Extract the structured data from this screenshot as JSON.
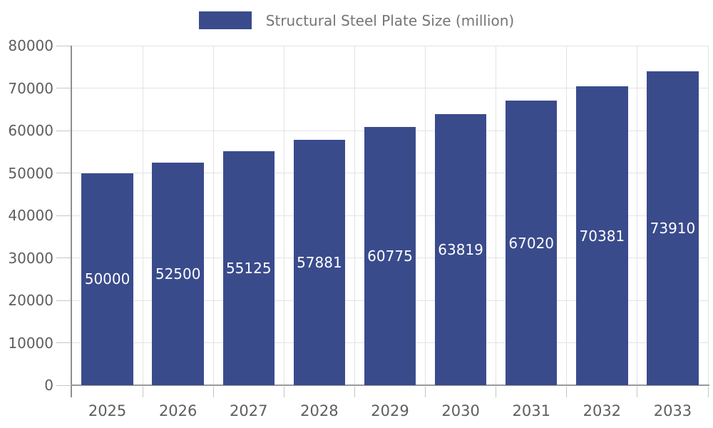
{
  "chart_data": {
    "type": "bar",
    "title": "Structural Steel Plate Size (million)",
    "categories": [
      "2025",
      "2026",
      "2027",
      "2028",
      "2029",
      "2030",
      "2031",
      "2032",
      "2033"
    ],
    "values": [
      50000,
      52500,
      55125,
      57881,
      60775,
      63819,
      67020,
      70381,
      73910
    ],
    "xlabel": "",
    "ylabel": "",
    "ylim": [
      0,
      80000
    ],
    "yticks": [
      0,
      10000,
      20000,
      30000,
      40000,
      50000,
      60000,
      70000,
      80000
    ],
    "grid": true,
    "legend_position": "top-center",
    "bar_color": "#3A4B8C",
    "value_label_color": "#FFFFFF",
    "axis_text_color": "#5E5E5E",
    "legend_text_color": "#757575",
    "grid_color": "#E3E3E3",
    "axis_line_color": "#9A9A9A",
    "tick_color": "#C6C6C6"
  }
}
